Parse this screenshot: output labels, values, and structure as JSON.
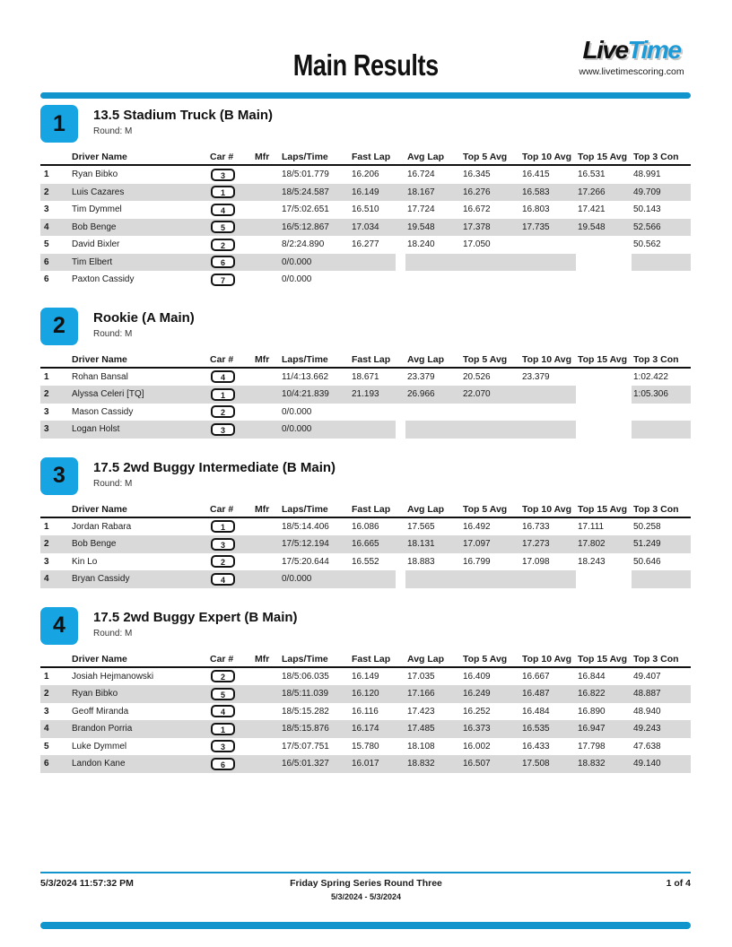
{
  "header": {
    "title": "Main Results",
    "logo_live": "Live",
    "logo_time": "Time",
    "website": "www.livetimescoring.com"
  },
  "colors": {
    "accent_bar": "#1295CD",
    "section_badge": "#17A4E2",
    "row_stripe": "#D9D9D9"
  },
  "columns": [
    "Driver Name",
    "Car #",
    "Mfr",
    "Laps/Time",
    "Fast Lap",
    "Avg Lap",
    "Top 5 Avg",
    "Top 10 Avg",
    "Top 15 Avg",
    "Top 3 Con"
  ],
  "sections": [
    {
      "number": "1",
      "title": "13.5 Stadium Truck (B Main)",
      "round": "Round: M",
      "rows": [
        {
          "pos": "1",
          "driver": "Ryan Bibko",
          "car": "3",
          "mfr": "",
          "laps": "18/5:01.779",
          "fast": "16.206",
          "avg": "16.724",
          "top5": "16.345",
          "top10": "16.415",
          "top15": "16.531",
          "top3": "48.991"
        },
        {
          "pos": "2",
          "driver": "Luis Cazares",
          "car": "1",
          "mfr": "",
          "laps": "18/5:24.587",
          "fast": "16.149",
          "avg": "18.167",
          "top5": "16.276",
          "top10": "16.583",
          "top15": "17.266",
          "top3": "49.709"
        },
        {
          "pos": "3",
          "driver": "Tim Dymmel",
          "car": "4",
          "mfr": "",
          "laps": "17/5:02.651",
          "fast": "16.510",
          "avg": "17.724",
          "top5": "16.672",
          "top10": "16.803",
          "top15": "17.421",
          "top3": "50.143"
        },
        {
          "pos": "4",
          "driver": "Bob Benge",
          "car": "5",
          "mfr": "",
          "laps": "16/5:12.867",
          "fast": "17.034",
          "avg": "19.548",
          "top5": "17.378",
          "top10": "17.735",
          "top15": "19.548",
          "top3": "52.566"
        },
        {
          "pos": "5",
          "driver": "David Bixler",
          "car": "2",
          "mfr": "",
          "laps": "8/2:24.890",
          "fast": "16.277",
          "avg": "18.240",
          "top5": "17.050",
          "top10": "",
          "top15": "",
          "top3": "50.562"
        },
        {
          "pos": "6",
          "driver": "Tim Elbert",
          "car": "6",
          "mfr": "",
          "laps": "0/0.000",
          "fast": "",
          "avg": "",
          "top5": "",
          "top10": "",
          "top15": "",
          "top3": ""
        },
        {
          "pos": "6",
          "driver": "Paxton Cassidy",
          "car": "7",
          "mfr": "",
          "laps": "0/0.000",
          "fast": "",
          "avg": "",
          "top5": "",
          "top10": "",
          "top15": "",
          "top3": ""
        }
      ]
    },
    {
      "number": "2",
      "title": "Rookie (A Main)",
      "round": "Round: M",
      "rows": [
        {
          "pos": "1",
          "driver": "Rohan Bansal",
          "car": "4",
          "mfr": "",
          "laps": "11/4:13.662",
          "fast": "18.671",
          "avg": "23.379",
          "top5": "20.526",
          "top10": "23.379",
          "top15": "",
          "top3": "1:02.422"
        },
        {
          "pos": "2",
          "driver": "Alyssa Celeri [TQ]",
          "car": "1",
          "mfr": "",
          "laps": "10/4:21.839",
          "fast": "21.193",
          "avg": "26.966",
          "top5": "22.070",
          "top10": "",
          "top15": "",
          "top3": "1:05.306"
        },
        {
          "pos": "3",
          "driver": "Mason Cassidy",
          "car": "2",
          "mfr": "",
          "laps": "0/0.000",
          "fast": "",
          "avg": "",
          "top5": "",
          "top10": "",
          "top15": "",
          "top3": ""
        },
        {
          "pos": "3",
          "driver": "Logan Holst",
          "car": "3",
          "mfr": "",
          "laps": "0/0.000",
          "fast": "",
          "avg": "",
          "top5": "",
          "top10": "",
          "top15": "",
          "top3": ""
        }
      ]
    },
    {
      "number": "3",
      "title": "17.5 2wd Buggy Intermediate (B Main)",
      "round": "Round: M",
      "rows": [
        {
          "pos": "1",
          "driver": "Jordan Rabara",
          "car": "1",
          "mfr": "",
          "laps": "18/5:14.406",
          "fast": "16.086",
          "avg": "17.565",
          "top5": "16.492",
          "top10": "16.733",
          "top15": "17.111",
          "top3": "50.258"
        },
        {
          "pos": "2",
          "driver": "Bob Benge",
          "car": "3",
          "mfr": "",
          "laps": "17/5:12.194",
          "fast": "16.665",
          "avg": "18.131",
          "top5": "17.097",
          "top10": "17.273",
          "top15": "17.802",
          "top3": "51.249"
        },
        {
          "pos": "3",
          "driver": "Kin Lo",
          "car": "2",
          "mfr": "",
          "laps": "17/5:20.644",
          "fast": "16.552",
          "avg": "18.883",
          "top5": "16.799",
          "top10": "17.098",
          "top15": "18.243",
          "top3": "50.646"
        },
        {
          "pos": "4",
          "driver": "Bryan Cassidy",
          "car": "4",
          "mfr": "",
          "laps": "0/0.000",
          "fast": "",
          "avg": "",
          "top5": "",
          "top10": "",
          "top15": "",
          "top3": ""
        }
      ]
    },
    {
      "number": "4",
      "title": "17.5 2wd Buggy Expert (B Main)",
      "round": "Round: M",
      "rows": [
        {
          "pos": "1",
          "driver": "Josiah Hejmanowski",
          "car": "2",
          "mfr": "",
          "laps": "18/5:06.035",
          "fast": "16.149",
          "avg": "17.035",
          "top5": "16.409",
          "top10": "16.667",
          "top15": "16.844",
          "top3": "49.407"
        },
        {
          "pos": "2",
          "driver": "Ryan Bibko",
          "car": "5",
          "mfr": "",
          "laps": "18/5:11.039",
          "fast": "16.120",
          "avg": "17.166",
          "top5": "16.249",
          "top10": "16.487",
          "top15": "16.822",
          "top3": "48.887"
        },
        {
          "pos": "3",
          "driver": "Geoff Miranda",
          "car": "4",
          "mfr": "",
          "laps": "18/5:15.282",
          "fast": "16.116",
          "avg": "17.423",
          "top5": "16.252",
          "top10": "16.484",
          "top15": "16.890",
          "top3": "48.940"
        },
        {
          "pos": "4",
          "driver": "Brandon Porria",
          "car": "1",
          "mfr": "",
          "laps": "18/5:15.876",
          "fast": "16.174",
          "avg": "17.485",
          "top5": "16.373",
          "top10": "16.535",
          "top15": "16.947",
          "top3": "49.243"
        },
        {
          "pos": "5",
          "driver": "Luke Dymmel",
          "car": "3",
          "mfr": "",
          "laps": "17/5:07.751",
          "fast": "15.780",
          "avg": "18.108",
          "top5": "16.002",
          "top10": "16.433",
          "top15": "17.798",
          "top3": "47.638"
        },
        {
          "pos": "6",
          "driver": "Landon Kane",
          "car": "6",
          "mfr": "",
          "laps": "16/5:01.327",
          "fast": "16.017",
          "avg": "18.832",
          "top5": "16.507",
          "top10": "17.508",
          "top15": "18.832",
          "top3": "49.140"
        }
      ]
    }
  ],
  "footer": {
    "printed_at": "5/3/2024 11:57:32 PM",
    "event": "Friday Spring Series Round Three",
    "date_range": "5/3/2024 - 5/3/2024",
    "page_number": "1 of 4"
  }
}
